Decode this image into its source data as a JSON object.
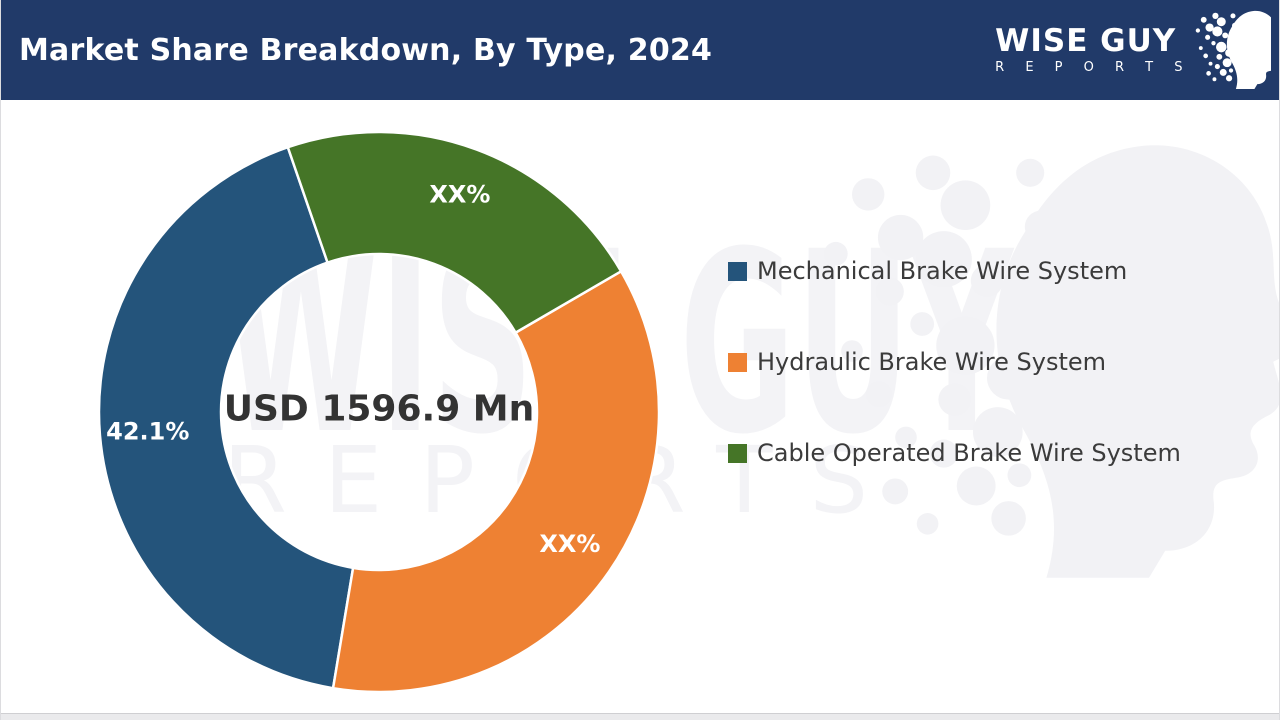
{
  "header": {
    "title": "Market Share Breakdown, By Type, 2024",
    "background_color": "#213a69",
    "logo": {
      "line1": "WISE GUY",
      "line2": "R E P O R T S"
    }
  },
  "chart_data": {
    "type": "pie",
    "donut": true,
    "title": "Market Share Breakdown, By Type, 2024",
    "center_label": "USD 1596.9 Mn",
    "start_angle_deg": 109,
    "direction": "counterclockwise",
    "legend_position": "right",
    "slices": [
      {
        "label": "Mechanical Brake Wire System",
        "value_pct": 42.1,
        "display_pct": "42.1%",
        "color": "#24547b"
      },
      {
        "label": "Hydraulic Brake Wire System",
        "value_pct": 36.0,
        "display_pct": "XX%",
        "color": "#ee8133"
      },
      {
        "label": "Cable Operated Brake Wire System",
        "value_pct": 21.9,
        "display_pct": "XX%",
        "color": "#457527"
      }
    ]
  },
  "watermark": {
    "line1": "WISE GUY",
    "line2": "REPORTS"
  },
  "colors": {
    "header_navy": "#213a69",
    "slice_blue": "#24547b",
    "slice_orange": "#ee8133",
    "slice_green": "#457527",
    "center_text": "#333333",
    "watermark_gray": "#f3f3f6"
  }
}
